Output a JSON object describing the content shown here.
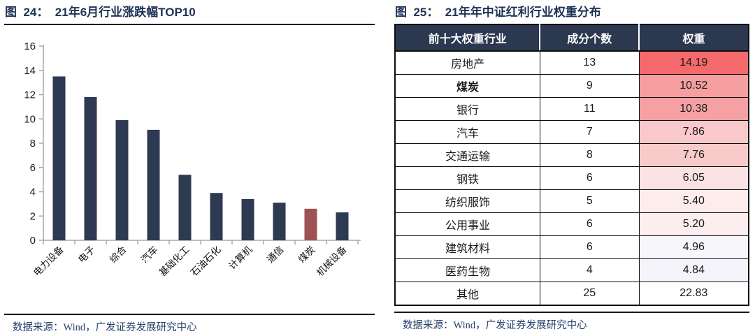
{
  "figure_left": {
    "title": "图  24：  21年6月行业涨跌幅TOP10",
    "source": "数据来源：Wind，广发证券发展研究中心"
  },
  "figure_right": {
    "title": "图  25：  21年年中证红利行业权重分布",
    "source": "数据来源：Wind，广发证券发展研究中心"
  },
  "chart_data": {
    "type": "bar",
    "title": "21年6月行业涨跌幅TOP10",
    "categories": [
      "电力设备",
      "电子",
      "综合",
      "汽车",
      "基础化工",
      "石油石化",
      "计算机",
      "通信",
      "煤炭",
      "机械设备"
    ],
    "values": [
      13.5,
      11.8,
      9.9,
      9.1,
      5.4,
      3.9,
      3.4,
      3.1,
      2.6,
      2.3
    ],
    "xlabel": "",
    "ylabel": "",
    "ylim": [
      0,
      16
    ],
    "ytick_step": 2,
    "grid": false,
    "legend": "none",
    "bar_color": "#2e3a52",
    "highlight_index": 8,
    "highlight_color": "#9e5253",
    "axis_color": "#a8a8ad",
    "tick_label_color": "#1a1a1a"
  },
  "table": {
    "headers": [
      "前十大权重行业",
      "成分个数",
      "权重"
    ],
    "header_bg": "#2b3850",
    "highlight_text_color": "#ee1111",
    "rows": [
      {
        "industry": "房地产",
        "count": "13",
        "weight": "14.19",
        "weight_bg": "#f4696b",
        "highlight": false
      },
      {
        "industry": "煤炭",
        "count": "9",
        "weight": "10.52",
        "weight_bg": "#f59fa1",
        "highlight": true
      },
      {
        "industry": "银行",
        "count": "11",
        "weight": "10.38",
        "weight_bg": "#f5a1a3",
        "highlight": false
      },
      {
        "industry": "汽车",
        "count": "7",
        "weight": "7.86",
        "weight_bg": "#f9c8ca",
        "highlight": false
      },
      {
        "industry": "交通运输",
        "count": "8",
        "weight": "7.76",
        "weight_bg": "#f9caca",
        "highlight": false
      },
      {
        "industry": "钢铁",
        "count": "6",
        "weight": "6.05",
        "weight_bg": "#fbe2e3",
        "highlight": false
      },
      {
        "industry": "纺织服饰",
        "count": "5",
        "weight": "5.40",
        "weight_bg": "#fcecec",
        "highlight": false
      },
      {
        "industry": "公用事业",
        "count": "6",
        "weight": "5.20",
        "weight_bg": "#fcedee",
        "highlight": false
      },
      {
        "industry": "建筑材料",
        "count": "6",
        "weight": "4.96",
        "weight_bg": "#f7f7fb",
        "highlight": false
      },
      {
        "industry": "医药生物",
        "count": "4",
        "weight": "4.84",
        "weight_bg": "#f5f4fa",
        "highlight": false
      },
      {
        "industry": "其他",
        "count": "25",
        "weight": "22.83",
        "weight_bg": "#ffffff",
        "highlight": false
      }
    ]
  }
}
